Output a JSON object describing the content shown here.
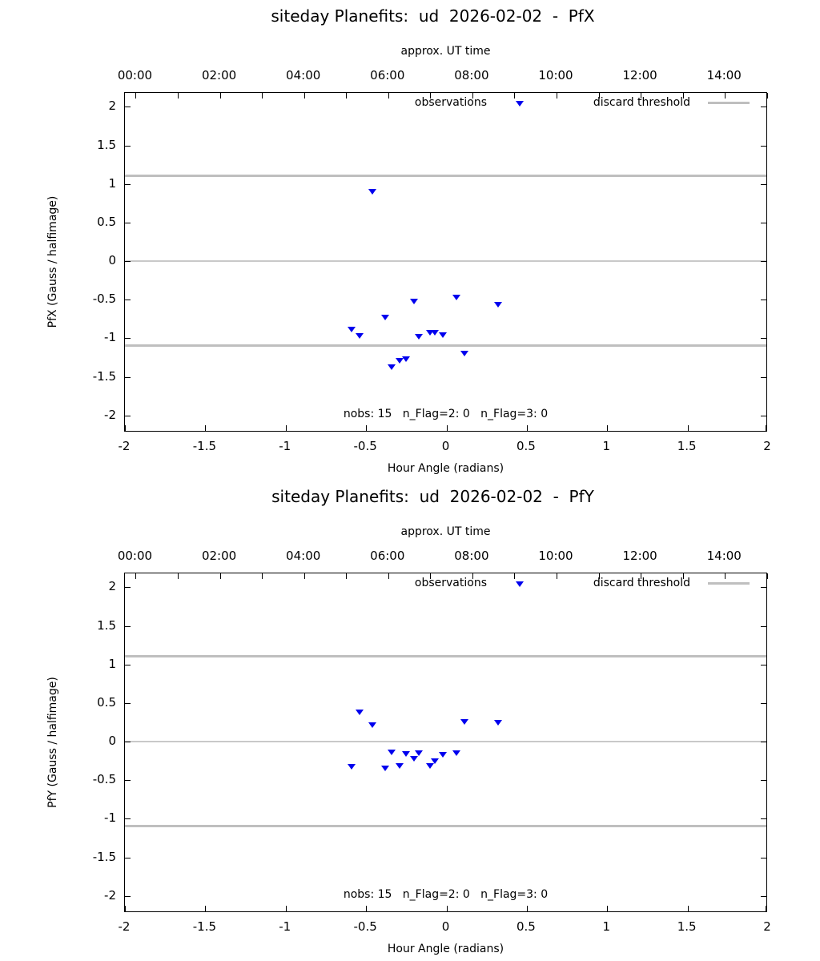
{
  "colors": {
    "marker_blue": "#0000ee",
    "threshold_gray": "#bfbfbf",
    "zero_gray": "#c9c9c9",
    "axis_black": "#000000"
  },
  "chart_data": [
    {
      "type": "scatter",
      "title": "siteday Planefits:  ud  2026-02-02  -  PfX",
      "top_axis_label": "approx. UT time",
      "xlabel": "Hour Angle (radians)",
      "ylabel": "PfX (Gauss / halfimage)",
      "xlim": [
        -2,
        2
      ],
      "ylim": [
        -2.22,
        2.18
      ],
      "grid": "off",
      "legend_position": "top-inside",
      "xtick_labels": [
        "-2",
        "-1.5",
        "-1",
        "-0.5",
        "0",
        "0.5",
        "1",
        "1.5",
        "2"
      ],
      "xtick_values": [
        -2,
        -1.5,
        -1,
        -0.5,
        0,
        0.5,
        1,
        1.5,
        2
      ],
      "ytick_labels": [
        "2",
        "1.5",
        "1",
        "0.5",
        "0",
        "-0.5",
        "-1",
        "-1.5",
        "-2"
      ],
      "ytick_values": [
        2,
        1.5,
        1,
        0.5,
        0,
        -0.5,
        -1,
        -1.5,
        -2
      ],
      "ut_tick_labels": [
        "00:00",
        "02:00",
        "04:00",
        "06:00",
        "08:00",
        "10:00",
        "12:00",
        "14:00"
      ],
      "ut_tick_hours": [
        0,
        2,
        4,
        6,
        8,
        10,
        12,
        14
      ],
      "ut_minor_hours": [
        0,
        1,
        2,
        3,
        4,
        5,
        6,
        7,
        8,
        9,
        10,
        11,
        12,
        13,
        14,
        15
      ],
      "ut_hour0_hour_angle": -1.933,
      "radians_per_hour": 0.2618,
      "threshold_values": [
        1.1,
        -1.1
      ],
      "zero_value": 0,
      "legend": {
        "observations_label": "observations",
        "threshold_label": "discard threshold"
      },
      "stats_text": "nobs: 15   n_Flag=2: 0   n_Flag=3: 0",
      "series": [
        {
          "name": "observations",
          "marker": "triangle-down",
          "points": [
            {
              "x": -0.59,
              "y": -0.89
            },
            {
              "x": -0.54,
              "y": -0.97
            },
            {
              "x": -0.46,
              "y": 0.89
            },
            {
              "x": -0.38,
              "y": -0.74
            },
            {
              "x": -0.34,
              "y": -1.38
            },
            {
              "x": -0.29,
              "y": -1.3
            },
            {
              "x": -0.25,
              "y": -1.28
            },
            {
              "x": -0.2,
              "y": -0.53
            },
            {
              "x": -0.17,
              "y": -0.98
            },
            {
              "x": -0.1,
              "y": -0.93
            },
            {
              "x": -0.07,
              "y": -0.93
            },
            {
              "x": -0.02,
              "y": -0.96
            },
            {
              "x": 0.06,
              "y": -0.48
            },
            {
              "x": 0.11,
              "y": -1.2
            },
            {
              "x": 0.32,
              "y": -0.57
            }
          ]
        }
      ]
    },
    {
      "type": "scatter",
      "title": "siteday Planefits:  ud  2026-02-02  -  PfY",
      "top_axis_label": "approx. UT time",
      "xlabel": "Hour Angle (radians)",
      "ylabel": "PfY (Gauss / halfimage)",
      "xlim": [
        -2,
        2
      ],
      "ylim": [
        -2.22,
        2.18
      ],
      "grid": "off",
      "legend_position": "top-inside",
      "xtick_labels": [
        "-2",
        "-1.5",
        "-1",
        "-0.5",
        "0",
        "0.5",
        "1",
        "1.5",
        "2"
      ],
      "xtick_values": [
        -2,
        -1.5,
        -1,
        -0.5,
        0,
        0.5,
        1,
        1.5,
        2
      ],
      "ytick_labels": [
        "2",
        "1.5",
        "1",
        "0.5",
        "0",
        "-0.5",
        "-1",
        "-1.5",
        "-2"
      ],
      "ytick_values": [
        2,
        1.5,
        1,
        0.5,
        0,
        -0.5,
        -1,
        -1.5,
        -2
      ],
      "ut_tick_labels": [
        "00:00",
        "02:00",
        "04:00",
        "06:00",
        "08:00",
        "10:00",
        "12:00",
        "14:00"
      ],
      "ut_tick_hours": [
        0,
        2,
        4,
        6,
        8,
        10,
        12,
        14
      ],
      "ut_minor_hours": [
        0,
        1,
        2,
        3,
        4,
        5,
        6,
        7,
        8,
        9,
        10,
        11,
        12,
        13,
        14,
        15
      ],
      "ut_hour0_hour_angle": -1.933,
      "radians_per_hour": 0.2618,
      "threshold_values": [
        1.1,
        -1.1
      ],
      "zero_value": 0,
      "legend": {
        "observations_label": "observations",
        "threshold_label": "discard threshold"
      },
      "stats_text": "nobs: 15   n_Flag=2: 0   n_Flag=3: 0",
      "series": [
        {
          "name": "observations",
          "marker": "triangle-down",
          "points": [
            {
              "x": -0.59,
              "y": -0.33
            },
            {
              "x": -0.54,
              "y": 0.37
            },
            {
              "x": -0.46,
              "y": 0.21
            },
            {
              "x": -0.38,
              "y": -0.35
            },
            {
              "x": -0.34,
              "y": -0.14
            },
            {
              "x": -0.29,
              "y": -0.32
            },
            {
              "x": -0.25,
              "y": -0.17
            },
            {
              "x": -0.2,
              "y": -0.23
            },
            {
              "x": -0.17,
              "y": -0.16
            },
            {
              "x": -0.1,
              "y": -0.32
            },
            {
              "x": -0.07,
              "y": -0.26
            },
            {
              "x": -0.02,
              "y": -0.18
            },
            {
              "x": 0.06,
              "y": -0.16
            },
            {
              "x": 0.11,
              "y": 0.25
            },
            {
              "x": 0.32,
              "y": 0.24
            }
          ]
        }
      ]
    }
  ]
}
